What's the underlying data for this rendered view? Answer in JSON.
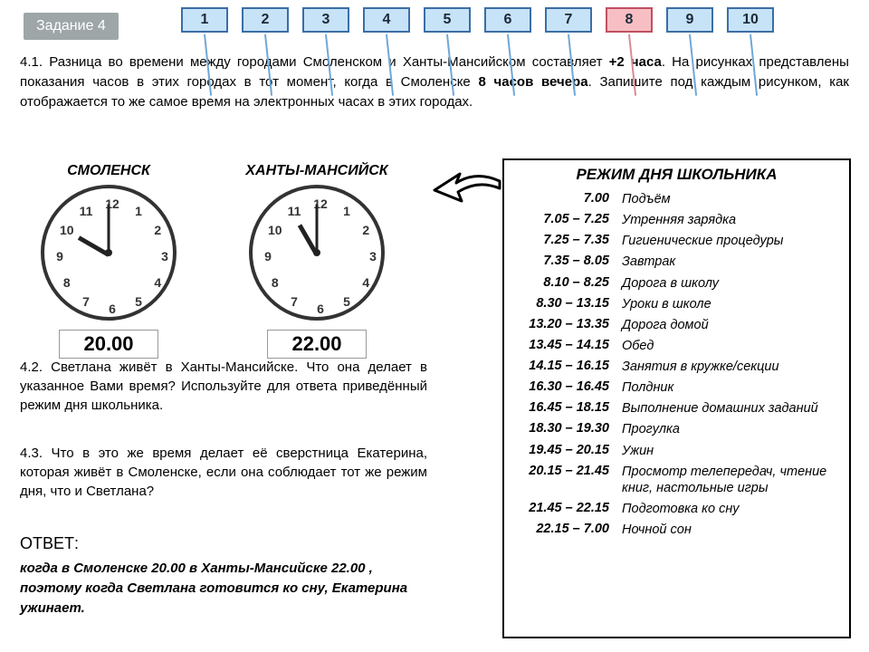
{
  "task_badge": "Задание 4",
  "tabs": [
    "1",
    "2",
    "3",
    "4",
    "5",
    "6",
    "7",
    "8",
    "9",
    "10"
  ],
  "active_tab_index": 7,
  "para41_prefix": "4.1.",
  "para41": "Разница во времени между городами Смоленском и Ханты-Мансийском составляет +2 часа. На рисунках представлены показания часов в этих городах в тот момент, когда в Смоленске 8 часов вечера.  Запишите под каждым рисунком, как отображается то же самое время на электронных часах в этих городах.",
  "clocks": [
    {
      "city": "СМОЛЕНСК",
      "hour_angle": -150,
      "min_angle": -90,
      "display": "20.00"
    },
    {
      "city": "ХАНТЫ-МАНСИЙСК",
      "hour_angle": -120,
      "min_angle": -90,
      "display": "22.00"
    }
  ],
  "clock_numbers": [
    "12",
    "1",
    "2",
    "3",
    "4",
    "5",
    "6",
    "7",
    "8",
    "9",
    "10",
    "11"
  ],
  "para42": "4.2. Светлана живёт в Ханты-Мансийске. Что она делает в указанное Вами время? Используйте для ответа приведённый режим дня школьника.",
  "para43": "4.3. Что в это же время делает её сверстница Екатерина, которая живёт в Смоленске, если она соблюдает тот же режим дня, что и Светлана?",
  "answer_label": "ОТВЕТ:",
  "answer_text": "когда в Смоленске 20.00   в Ханты-Мансийске 22.00 ,  поэтому когда Светлана  готовится ко сну, Екатерина  ужинает.",
  "schedule_title": "РЕЖИМ ДНЯ ШКОЛЬНИКА",
  "schedule": [
    {
      "t": "7.00",
      "a": "Подъём"
    },
    {
      "t": "7.05 – 7.25",
      "a": "Утренняя зарядка"
    },
    {
      "t": "7.25 – 7.35",
      "a": "Гигиенические процедуры"
    },
    {
      "t": "7.35 – 8.05",
      "a": "Завтрак"
    },
    {
      "t": "8.10 – 8.25",
      "a": "Дорога в школу"
    },
    {
      "t": "8.30 – 13.15",
      "a": "Уроки в школе"
    },
    {
      "t": "13.20 – 13.35",
      "a": "Дорога домой"
    },
    {
      "t": "13.45 – 14.15",
      "a": "Обед"
    },
    {
      "t": "14.15 – 16.15",
      "a": "Занятия в кружке/секции"
    },
    {
      "t": "16.30 – 16.45",
      "a": "Полдник"
    },
    {
      "t": "16.45 – 18.15",
      "a": "Выполнение домашних заданий"
    },
    {
      "t": "18.30 – 19.30",
      "a": "Прогулка"
    },
    {
      "t": "19.45 – 20.15",
      "a": "Ужин"
    },
    {
      "t": "20.15 – 21.45",
      "a": "Просмотр телепередач, чтение книг, настольные игры"
    },
    {
      "t": "21.45 – 22.15",
      "a": "Подготовка ко сну"
    },
    {
      "t": "22.15 – 7.00",
      "a": "Ночной сон"
    }
  ]
}
